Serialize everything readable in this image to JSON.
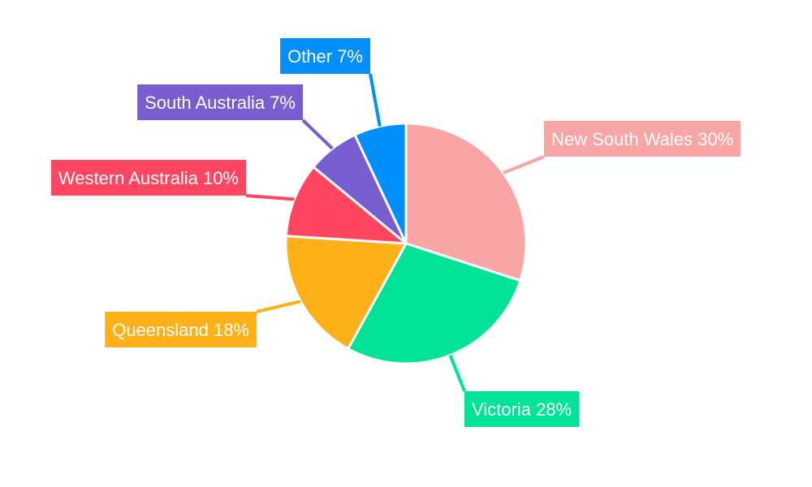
{
  "chart_data": {
    "type": "pie",
    "start_angle_deg": 0,
    "direction": "clockwise",
    "slices": [
      {
        "label": "New South Wales",
        "value": 30,
        "display": "New South Wales 30%",
        "color": "#f9a5a5"
      },
      {
        "label": "Victoria",
        "value": 28,
        "display": "Victoria 28%",
        "color": "#00e396"
      },
      {
        "label": "Queensland",
        "value": 18,
        "display": "Queensland 18%",
        "color": "#feb019"
      },
      {
        "label": "Western Australia",
        "value": 10,
        "display": "Western Australia 10%",
        "color": "#ff4560"
      },
      {
        "label": "South Australia",
        "value": 7,
        "display": "South Australia 7%",
        "color": "#775dd0"
      },
      {
        "label": "Other",
        "value": 7,
        "display": "Other 7%",
        "color": "#008ffb"
      }
    ]
  }
}
